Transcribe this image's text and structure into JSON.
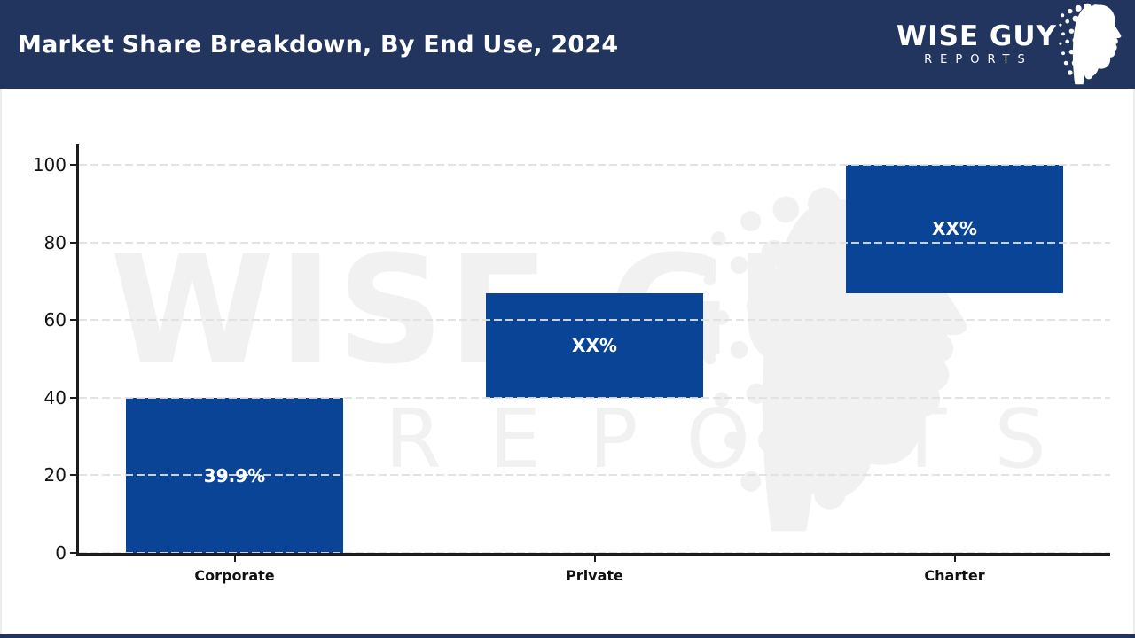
{
  "header": {
    "title": "Market Share Breakdown, By End Use, 2024",
    "logo": {
      "wordmark": "WISE GUY",
      "subtitle": "REPORTS"
    }
  },
  "watermark": {
    "wordmark": "WISE GUY",
    "subtitle": "REPORTS"
  },
  "chart_data": {
    "type": "bar",
    "variant": "floating-segment-bars",
    "title": "Market Share Breakdown, By End Use, 2024",
    "categories": [
      "Corporate",
      "Private",
      "Charter"
    ],
    "series": [
      {
        "name": "Market share by end use",
        "segments": [
          {
            "category": "Corporate",
            "start": 0,
            "end": 39.9,
            "label": "39.9%"
          },
          {
            "category": "Private",
            "start": 39.9,
            "end": 67,
            "label": "XX%"
          },
          {
            "category": "Charter",
            "start": 67,
            "end": 100,
            "label": "XX%"
          }
        ]
      }
    ],
    "xlabel": "",
    "ylabel": "",
    "ylim": [
      0,
      100
    ],
    "yticks": [
      0,
      20,
      40,
      60,
      80,
      100
    ],
    "grid": "horizontal-dashed",
    "legend": "none",
    "colors": {
      "bar": "#0a4496",
      "bar_label": "#ffffff",
      "axis": "#1c1c1c",
      "tick_label": "#111111",
      "gridline": "#e0e0e0",
      "header_bg": "#22355f",
      "watermark": "#f1f1f2"
    }
  }
}
